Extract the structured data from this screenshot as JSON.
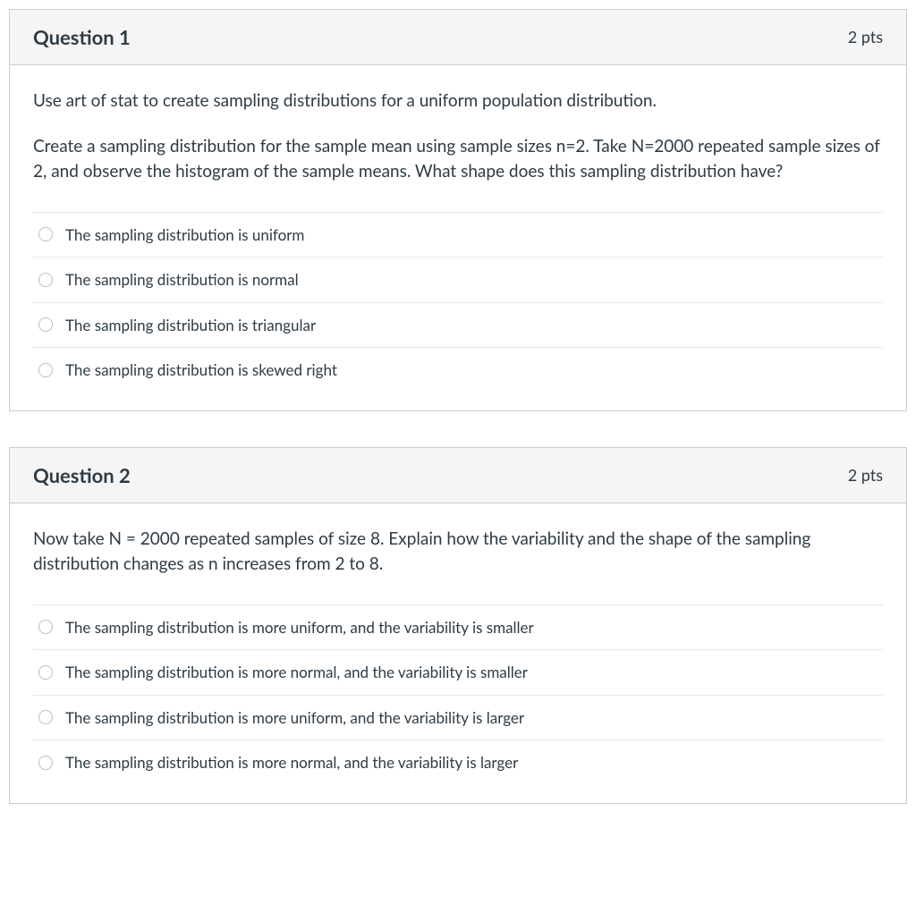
{
  "questions": [
    {
      "title": "Question 1",
      "points": "2 pts",
      "prompt_paragraphs": [
        "Use art of stat to create sampling distributions for a uniform population distribution.",
        "Create a sampling distribution for the sample mean using sample sizes n=2. Take N=2000 repeated sample sizes of 2, and observe the histogram of the sample means. What shape does this sampling distribution have?"
      ],
      "options": [
        "The sampling distribution is uniform",
        "The sampling distribution is normal",
        "The sampling distribution is triangular",
        "The sampling distribution is skewed right"
      ]
    },
    {
      "title": "Question 2",
      "points": "2 pts",
      "prompt_paragraphs": [
        "Now take N = 2000 repeated samples of size 8. Explain how the variability and the shape of the sampling distribution changes as n increases from 2 to 8."
      ],
      "options": [
        "The sampling distribution is more uniform, and the variability is smaller",
        "The sampling distribution is more normal, and the variability is smaller",
        "The sampling distribution is more uniform, and the variability is larger",
        "The sampling distribution is more normal, and the variability is larger"
      ]
    }
  ],
  "colors": {
    "border": "#c7cdd1",
    "header_bg": "#f5f5f5",
    "text": "#2d3b45",
    "row_border": "#e5e8ea",
    "radio_border": "#b8bfc4",
    "page_bg": "#ffffff"
  }
}
